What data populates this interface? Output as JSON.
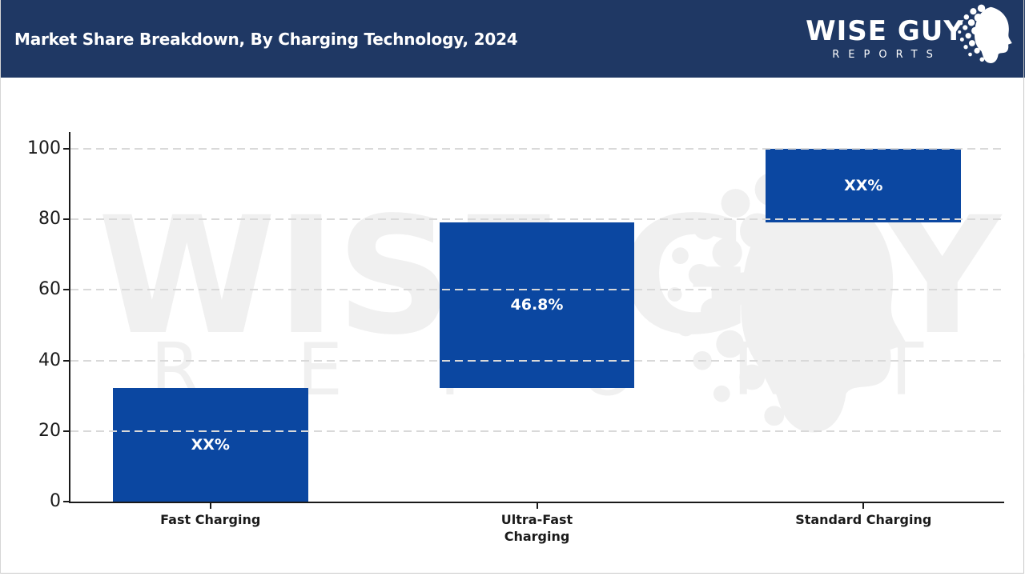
{
  "header": {
    "title": "Market Share Breakdown, By Charging Technology, 2024",
    "logo": {
      "wordmark": "WISE GUY",
      "subtitle": "REPORTS"
    }
  },
  "watermark": {
    "wordmark": "WISE GUY",
    "subtitle": "R E P O R T S"
  },
  "colors": {
    "header_bg": "#1f3864",
    "bar": "#0b47a1",
    "grid": "#d9d9d9",
    "axis": "#1a1a1a",
    "tick_text": "#1a1a1a",
    "bar_label_text": "#ffffff",
    "watermark": "#f0f0f0",
    "page_border": "#c9c9c9"
  },
  "chart_data": {
    "type": "bar",
    "subtype": "waterfall",
    "title": "Market Share Breakdown, By Charging Technology, 2024",
    "categories": [
      "Fast Charging",
      "Ultra-Fast\nCharging",
      "Standard Charging"
    ],
    "segments": [
      {
        "category": "Fast Charging",
        "label": "XX%",
        "start": 0,
        "end": 32.3,
        "value": 32.3
      },
      {
        "category": "Ultra-Fast Charging",
        "label": "46.8%",
        "start": 32.3,
        "end": 79.1,
        "value": 46.8
      },
      {
        "category": "Standard Charging",
        "label": "XX%",
        "start": 79.1,
        "end": 100,
        "value": 20.9
      }
    ],
    "yticks": [
      0,
      20,
      40,
      60,
      80,
      100
    ],
    "ylim": [
      0,
      104.8
    ],
    "xlabel": "",
    "ylabel": "",
    "grid": "horizontal-dashed",
    "legend": "none"
  }
}
